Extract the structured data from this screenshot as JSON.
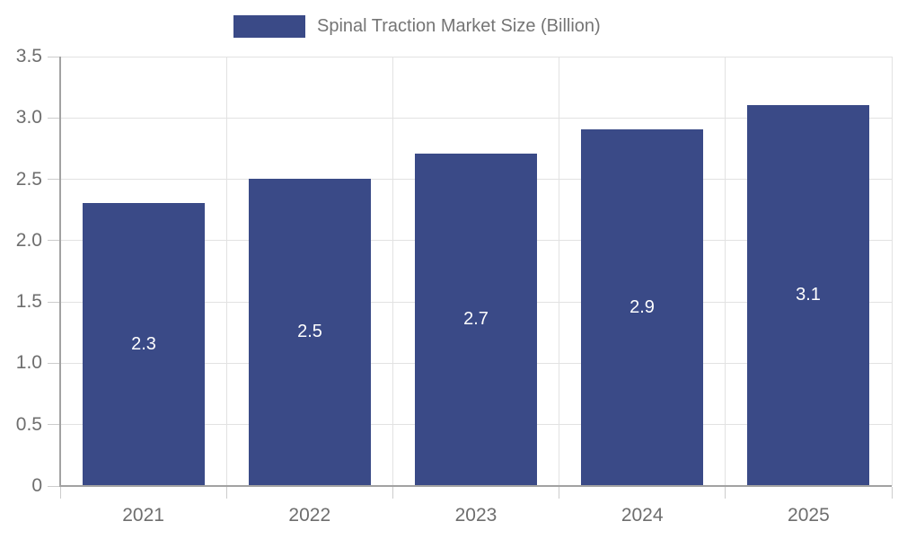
{
  "legend": {
    "label": "Spinal Traction Market Size (Billion)"
  },
  "colors": {
    "bar": "#3a4a87",
    "bar_label": "#ffffff",
    "grid": "#e2e2e2",
    "axis": "#a2a2a2",
    "tick": "#cccccc",
    "axis_label": "#6e6e6e",
    "legend_text": "#757575"
  },
  "chart_data": {
    "type": "bar",
    "title": "Spinal Traction Market Size (Billion)",
    "categories": [
      "2021",
      "2022",
      "2023",
      "2024",
      "2025"
    ],
    "values": [
      2.3,
      2.5,
      2.7,
      2.9,
      3.1
    ],
    "bar_labels": [
      "2.3",
      "2.5",
      "2.7",
      "2.9",
      "3.1"
    ],
    "xlabel": "",
    "ylabel": "",
    "ylim": [
      0,
      3.5
    ],
    "ytick_step": 0.5,
    "ytick_labels": [
      "0",
      "0.5",
      "1.0",
      "1.5",
      "2.0",
      "2.5",
      "3.0",
      "3.5"
    ],
    "grid": true,
    "legend_position": "top"
  }
}
